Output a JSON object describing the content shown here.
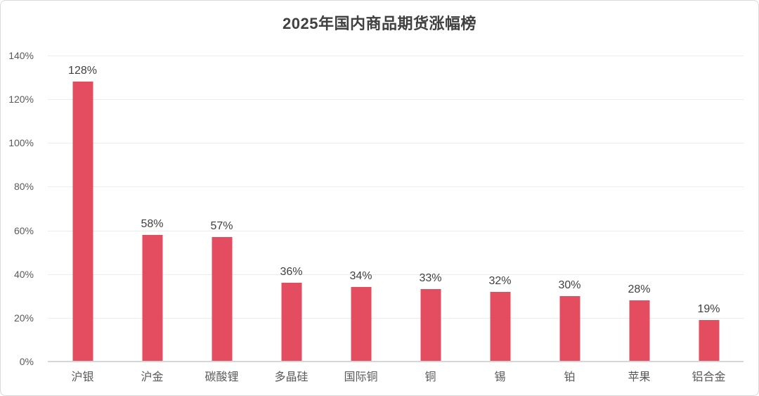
{
  "title": "2025年国内商品期货涨幅榜",
  "colors": {
    "bar": "#e44d5f",
    "title_text": "#404040",
    "data_label_text": "#3f3f3f",
    "axis_label_text": "#595959",
    "gridline": "#ececec",
    "axis_line": "#d6d6d6",
    "card_border": "#d9d9d9",
    "background": "#ffffff"
  },
  "chart_data": {
    "type": "bar",
    "title": "2025年国内商品期货涨幅榜",
    "categories": [
      "沪银",
      "沪金",
      "碳酸锂",
      "多晶硅",
      "国际铜",
      "铜",
      "锡",
      "铂",
      "苹果",
      "铝合金"
    ],
    "values": [
      128,
      58,
      57,
      36,
      34,
      33,
      32,
      30,
      28,
      19
    ],
    "data_labels": [
      "128%",
      "58%",
      "57%",
      "36%",
      "34%",
      "33%",
      "32%",
      "30%",
      "28%",
      "19%"
    ],
    "xlabel": "",
    "ylabel": "",
    "ylim": [
      0,
      140
    ],
    "ytick_values": [
      0,
      20,
      40,
      60,
      80,
      100,
      120,
      140
    ],
    "ytick_labels": [
      "0%",
      "20%",
      "40%",
      "60%",
      "80%",
      "100%",
      "120%",
      "140%"
    ],
    "grid": true,
    "legend": false,
    "bar_color": "#e44d5f"
  }
}
